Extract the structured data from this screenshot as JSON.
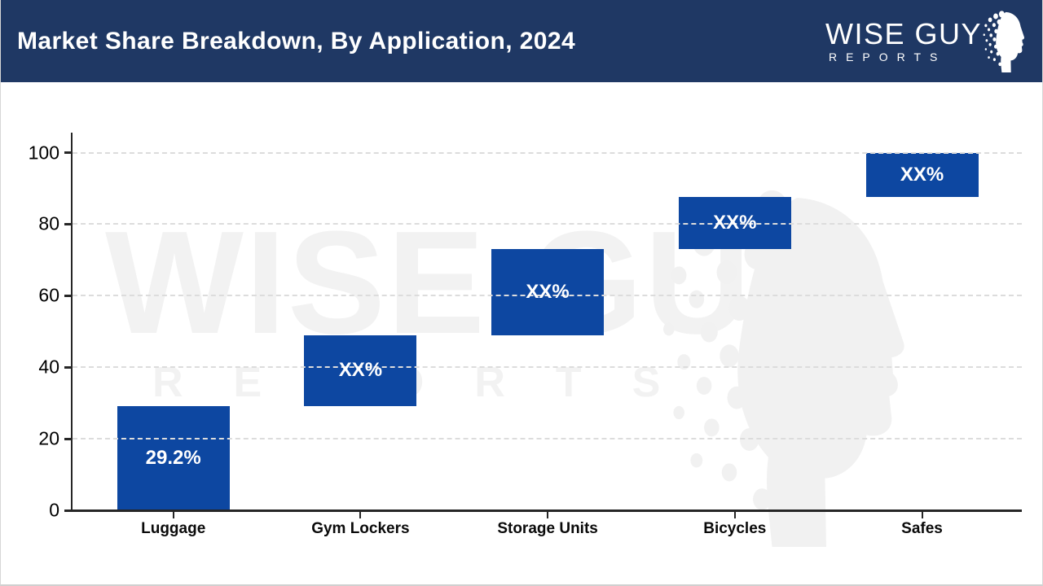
{
  "page": {
    "title": "Market Share Breakdown, By Application, 2024"
  },
  "logo": {
    "name": "WISE GUY",
    "subtitle": "REPORTS"
  },
  "watermark": {
    "line1": "WISE GUY",
    "line2": "REPORTS"
  },
  "theme": {
    "header_bg": "#1F3864",
    "bar_color": "#0D47A1",
    "bar_label_color": "#FFFFFF",
    "grid_color": "#DCDCDC",
    "axis_color": "#262626",
    "watermark_color": "#F2F2F2"
  },
  "chart_data": {
    "type": "bar",
    "subtype": "waterfall",
    "title": "Market Share Breakdown, By Application, 2024",
    "categories": [
      "Luggage",
      "Gym Lockers",
      "Storage Units",
      "Bicycles",
      "Safes"
    ],
    "segments": [
      {
        "category": "Luggage",
        "start": 0,
        "end": 29.2,
        "label": "29.2%"
      },
      {
        "category": "Gym Lockers",
        "start": 29.2,
        "end": 48.9,
        "label": "XX%"
      },
      {
        "category": "Storage Units",
        "start": 48.9,
        "end": 73.0,
        "label": "XX%"
      },
      {
        "category": "Bicycles",
        "start": 73.0,
        "end": 87.7,
        "label": "XX%"
      },
      {
        "category": "Safes",
        "start": 87.7,
        "end": 100,
        "label": "XX%"
      }
    ],
    "xlabel": "",
    "ylabel": "",
    "yticks": [
      0,
      20,
      40,
      60,
      80,
      100
    ],
    "ylim": [
      0,
      105
    ],
    "grid": {
      "horizontal": true,
      "style": "dashed",
      "on_top_of_bars": true
    },
    "legend": null
  }
}
